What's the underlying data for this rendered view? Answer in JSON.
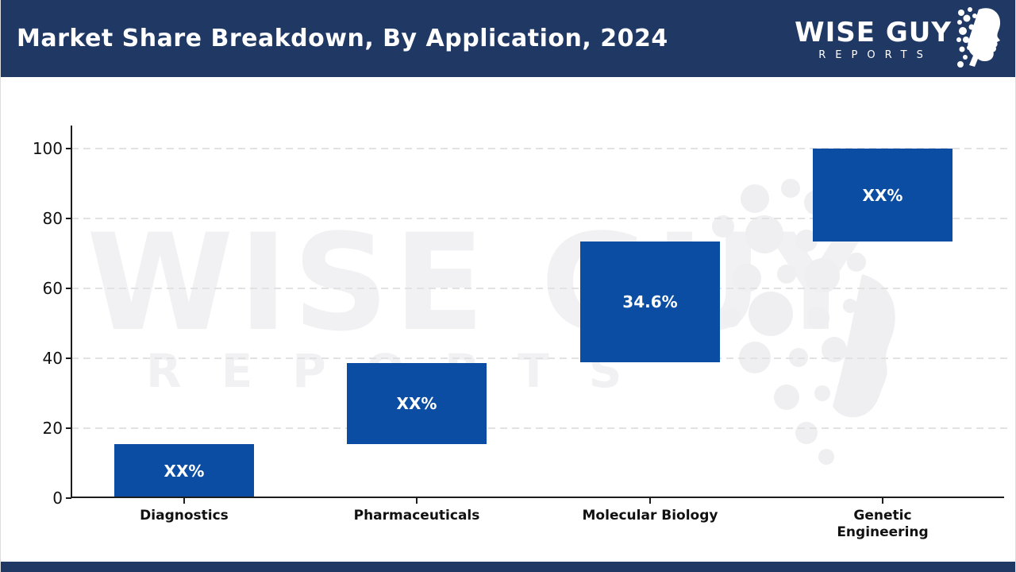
{
  "header": {
    "title": "Market Share Breakdown, By Application, 2024",
    "logo": {
      "line1": "WISE GUY",
      "line2": "REPORTS",
      "icon": "dotted-face-profile-icon"
    }
  },
  "watermark": {
    "line1": "WISE GUY",
    "line2": "REPORTS"
  },
  "colors": {
    "header_bg": "#1f3864",
    "footer_bg": "#1f3864",
    "bar": "#0b4da2",
    "bar_label": "#ffffff",
    "watermark": "#f1f1f3",
    "gridline": "#e2e2e2",
    "axis": "#1c1c1c"
  },
  "chart_data": {
    "type": "bar",
    "subtype": "waterfall",
    "title": "Market Share Breakdown, By Application, 2024",
    "xlabel": "",
    "ylabel": "",
    "ylim": [
      0,
      107
    ],
    "y_ticks": [
      0,
      20,
      40,
      60,
      80,
      100
    ],
    "grid": "horizontal dashed",
    "legend": "none",
    "categories": [
      "Diagnostics",
      "Pharmaceuticals",
      "Molecular Biology",
      "Genetic\nEngineering"
    ],
    "segments": [
      {
        "category": "Diagnostics",
        "start": 0,
        "end": 15.5,
        "label": "XX%"
      },
      {
        "category": "Pharmaceuticals",
        "start": 15.5,
        "end": 38.7,
        "label": "XX%"
      },
      {
        "category": "Molecular Biology",
        "start": 38.8,
        "end": 73.4,
        "label": "34.6%"
      },
      {
        "category": "Genetic\nEngineering",
        "start": 73.4,
        "end": 100,
        "label": "XX%"
      }
    ]
  }
}
